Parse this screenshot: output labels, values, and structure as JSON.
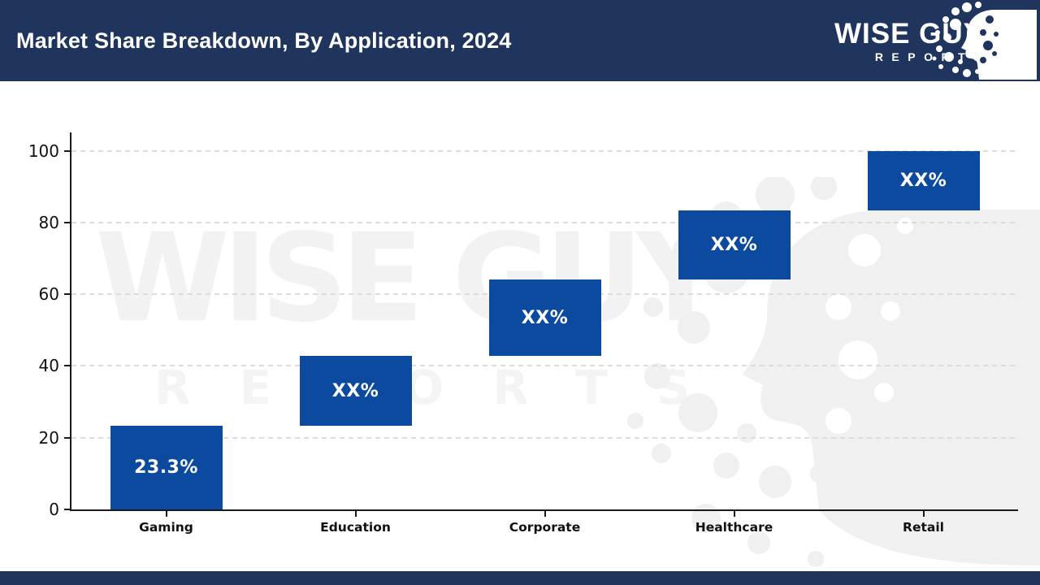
{
  "header": {
    "title": "Market Share Breakdown, By Application, 2024",
    "logo": {
      "line1": "WISE GUY",
      "line2": "REPORTS"
    }
  },
  "watermark": {
    "line1": "WISE GUY",
    "line2": "REPORTS"
  },
  "colors": {
    "header_bg": "#1f355e",
    "footer_bg": "#1f355e",
    "bar_fill": "#0b4a9f",
    "bar_label": "#ffffff",
    "gridline": "#dcdcdc",
    "axis": "#1a1a1a",
    "watermark": "#f2f2f2"
  },
  "chart_data": {
    "type": "bar",
    "subtype": "waterfall-floating-bars",
    "title": "Market Share Breakdown, By Application, 2024",
    "categories": [
      "Gaming",
      "Education",
      "Corporate",
      "Healthcare",
      "Retail"
    ],
    "segments": [
      {
        "category": "Gaming",
        "start": 0,
        "end": 23.3,
        "value": 23.3,
        "label": "23.3%"
      },
      {
        "category": "Education",
        "start": 23.3,
        "end": 42.7,
        "value": 19.4,
        "label": "XX%"
      },
      {
        "category": "Corporate",
        "start": 42.7,
        "end": 64.0,
        "value": 21.3,
        "label": "XX%"
      },
      {
        "category": "Healthcare",
        "start": 64.0,
        "end": 83.4,
        "value": 19.4,
        "label": "XX%"
      },
      {
        "category": "Retail",
        "start": 83.4,
        "end": 100.0,
        "value": 16.6,
        "label": "XX%"
      }
    ],
    "y_ticks": [
      0,
      20,
      40,
      60,
      80,
      100
    ],
    "ylim": [
      0,
      105
    ],
    "xlabel": "",
    "ylabel": "",
    "grid": "horizontal-dashed",
    "legend": "none",
    "bar_color": "#0b4a9f",
    "label_color": "#ffffff"
  }
}
